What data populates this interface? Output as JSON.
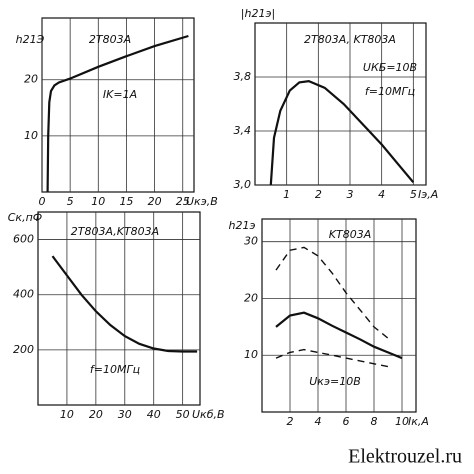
{
  "chart_data": [
    {
      "type": "line",
      "title": "2T803A",
      "annotations": [
        "IK=1A"
      ],
      "ylabel": "h21Э",
      "xlabel": "Uкэ,В",
      "xlim": [
        0,
        27
      ],
      "ylim": [
        0,
        31
      ],
      "xticks": [
        0,
        5,
        10,
        15,
        20,
        25
      ],
      "yticks": [
        10,
        20
      ],
      "grid": true,
      "series": [
        {
          "color": "#111111",
          "dashed": false,
          "x": [
            1,
            1.1,
            1.3,
            1.6,
            2.2,
            3,
            5,
            10,
            15,
            20,
            26
          ],
          "values": [
            0,
            10,
            16,
            18,
            19,
            19.5,
            20.2,
            22.3,
            24.2,
            26,
            27.8
          ]
        }
      ]
    },
    {
      "type": "line",
      "title": "2T803A, KT803A",
      "annotations": [
        "UКБ=10В",
        "f=10МГц"
      ],
      "ylabel": "|h21э|",
      "xlabel": "Iэ,А",
      "xlim": [
        0,
        5.4
      ],
      "ylim": [
        3.0,
        4.2
      ],
      "xticks": [
        1,
        2,
        3,
        4,
        5
      ],
      "yticks": [
        {
          "value": 3.0,
          "label": "3,0"
        },
        {
          "value": 3.4,
          "label": "3,4"
        },
        {
          "value": 3.8,
          "label": "3,8"
        }
      ],
      "grid": true,
      "series": [
        {
          "color": "#111111",
          "dashed": false,
          "x": [
            0.5,
            0.6,
            0.8,
            1.1,
            1.4,
            1.7,
            2.2,
            2.8,
            3.4,
            4,
            4.5,
            5
          ],
          "values": [
            3.0,
            3.35,
            3.55,
            3.7,
            3.76,
            3.77,
            3.72,
            3.6,
            3.45,
            3.3,
            3.16,
            3.02
          ]
        }
      ]
    },
    {
      "type": "line",
      "title": "2T803A,KT803A",
      "annotations": [
        "f=10МГц"
      ],
      "ylabel": "Cк,пФ",
      "xlabel": "Uкб,В",
      "xlim": [
        0,
        56
      ],
      "ylim": [
        0,
        700
      ],
      "xticks": [
        10,
        20,
        30,
        40,
        50
      ],
      "yticks": [
        200,
        400,
        600
      ],
      "grid": true,
      "series": [
        {
          "color": "#111111",
          "dashed": false,
          "x": [
            5,
            10,
            15,
            20,
            25,
            30,
            35,
            40,
            45,
            50,
            55
          ],
          "values": [
            540,
            470,
            400,
            340,
            290,
            250,
            222,
            205,
            196,
            194,
            194
          ]
        }
      ]
    },
    {
      "type": "line",
      "title": "KT803A",
      "annotations": [
        "Uкэ=10В"
      ],
      "ylabel": "h21э",
      "xlabel": "Iк,А",
      "xlim": [
        0,
        11
      ],
      "ylim": [
        0,
        34
      ],
      "xticks": [
        2,
        4,
        6,
        8,
        10
      ],
      "yticks": [
        10,
        20,
        30
      ],
      "grid": true,
      "series": [
        {
          "color": "#111111",
          "dashed": true,
          "x": [
            1,
            2,
            3,
            4,
            5,
            6,
            7,
            8,
            9
          ],
          "values": [
            25,
            28.5,
            29,
            27.5,
            24.5,
            21,
            18,
            15,
            13
          ]
        },
        {
          "color": "#111111",
          "dashed": false,
          "x": [
            1,
            2,
            3,
            4,
            5,
            6,
            7,
            8,
            9,
            10
          ],
          "values": [
            15,
            17,
            17.5,
            16.5,
            15.2,
            14,
            12.8,
            11.5,
            10.5,
            9.5
          ]
        },
        {
          "color": "#111111",
          "dashed": true,
          "x": [
            1,
            2,
            3,
            4,
            5,
            6,
            7,
            8,
            9
          ],
          "values": [
            9.5,
            10.5,
            11,
            10.5,
            10,
            9.5,
            9,
            8.5,
            8
          ]
        }
      ]
    }
  ],
  "footer": "Elektrouzel.ru"
}
